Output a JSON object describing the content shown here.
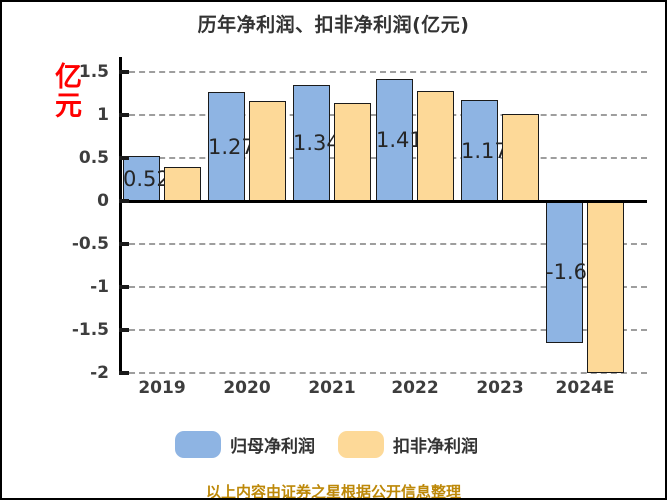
{
  "title": "历年净利润、扣非净利润(亿元)",
  "y_unit_label": "亿元",
  "footer": "以上内容由证券之星根据公开信息整理",
  "legend": [
    {
      "label": "归母净利润",
      "color": "#8eb4e3"
    },
    {
      "label": "扣非净利润",
      "color": "#fdd998"
    }
  ],
  "colors": {
    "net_profit_bar": "#8eb4e3",
    "deducted_bar": "#fdd998",
    "bar_border": "#1a1a1a",
    "gridline": "#9e9e9e",
    "axis": "#000000",
    "title_text": "#333333",
    "tick_text": "#3d3d3d",
    "unit_label": "#ff0000",
    "footer_text": "#bd8808"
  },
  "chart_data": {
    "type": "bar",
    "categories": [
      "2019",
      "2020",
      "2021",
      "2022",
      "2023",
      "2024E"
    ],
    "series": [
      {
        "name": "归母净利润",
        "color": "#8eb4e3",
        "values": [
          0.524,
          1.27,
          1.344,
          1.417,
          1.173,
          -1.65
        ],
        "labels": [
          "0.524",
          "1.27",
          "1.344",
          "1.417",
          "1.173",
          "-1.65"
        ]
      },
      {
        "name": "扣非净利润",
        "color": "#fdd998",
        "values": [
          0.4,
          1.16,
          1.14,
          1.28,
          1.01,
          -2.0
        ],
        "labels": []
      }
    ],
    "title": "历年净利润、扣非净利润(亿元)",
    "xlabel": "",
    "ylabel": "亿元",
    "ylim": [
      -2,
      1.5
    ],
    "yticks": [
      1.5,
      1,
      0.5,
      0,
      -0.5,
      -1,
      -1.5,
      -2
    ],
    "ytick_labels": [
      "1.5",
      "1",
      "0.5",
      "0",
      "-0.5",
      "-1",
      "-1.5",
      "-2"
    ],
    "grid": "dashed",
    "legend_position": "bottom"
  }
}
